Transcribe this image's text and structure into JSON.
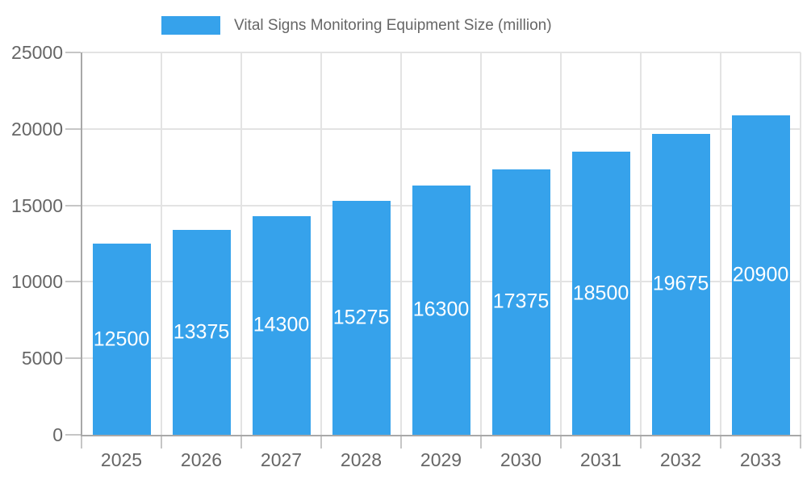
{
  "legend": {
    "label": "Vital Signs Monitoring Equipment Size (million)"
  },
  "colors": {
    "bar": "#36a2eb",
    "grid": "#e3e3e3",
    "axis": "#a8a8a8",
    "tick": "#c6c6c6",
    "text": "#666666",
    "value_label": "#ffffff",
    "background": "#ffffff"
  },
  "chart_data": {
    "type": "bar",
    "title": "Vital Signs Monitoring Equipment Size (million)",
    "categories": [
      "2025",
      "2026",
      "2027",
      "2028",
      "2029",
      "2030",
      "2031",
      "2032",
      "2033"
    ],
    "values": [
      12500,
      13375,
      14300,
      15275,
      16300,
      17375,
      18500,
      19675,
      20900
    ],
    "xlabel": "",
    "ylabel": "",
    "ylim": [
      0,
      25000
    ],
    "yticks": [
      0,
      5000,
      10000,
      15000,
      20000,
      25000
    ],
    "grid": true,
    "legend_position": "top",
    "value_label_position": "inside-center"
  }
}
